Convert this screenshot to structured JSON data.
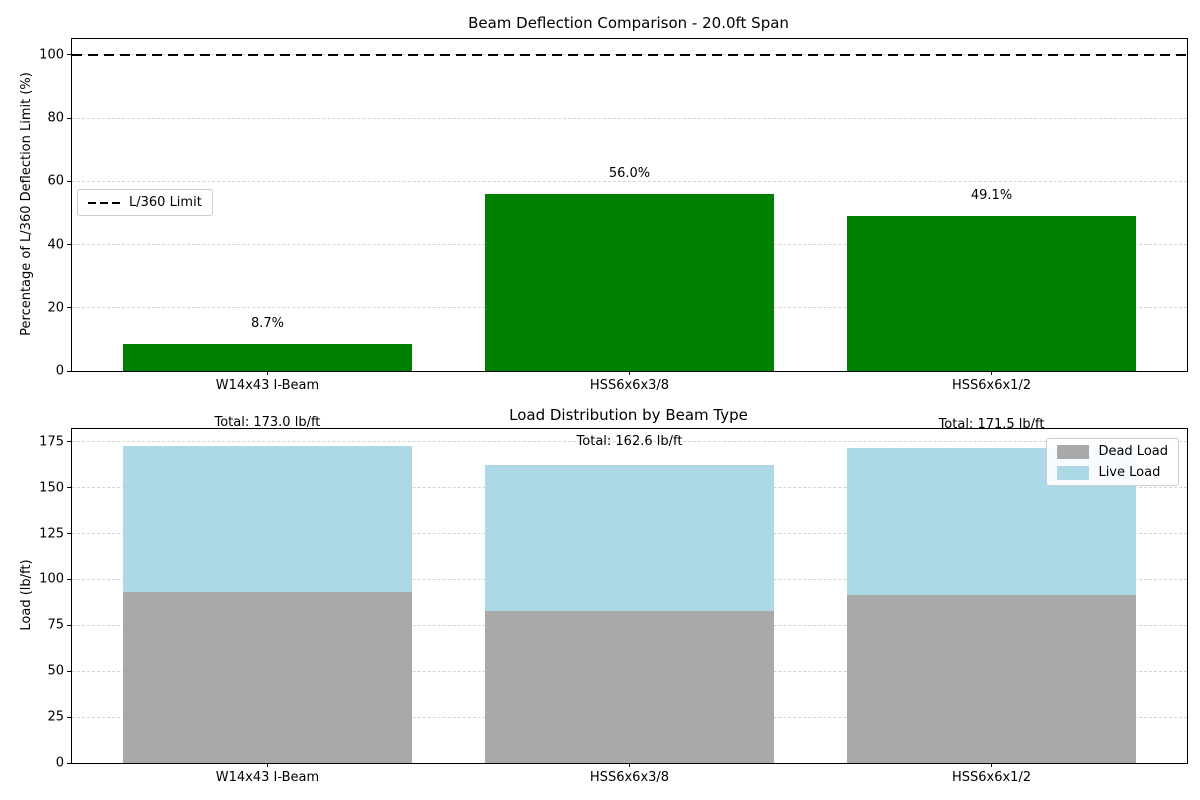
{
  "figure": {
    "background": "#ffffff",
    "grid_color": "#d4d4d4",
    "spine_color": "#000000"
  },
  "chart_data": [
    {
      "type": "bar",
      "title": "Beam Deflection Comparison - 20.0ft Span",
      "ylabel": "Percentage of L/360 Deflection Limit (%)",
      "xlabel": "",
      "categories": [
        "W14x43 I-Beam",
        "HSS6x6x3/8",
        "HSS6x6x1/2"
      ],
      "values": [
        8.7,
        56.0,
        49.1
      ],
      "bar_labels": [
        "8.7%",
        "56.0%",
        "49.1%"
      ],
      "bar_color": "#008000",
      "ylim": [
        0,
        105
      ],
      "yticks": [
        0,
        20,
        40,
        60,
        80,
        100
      ],
      "grid": true,
      "ref_line": {
        "value": 100,
        "style": "dashed",
        "color": "#000000",
        "label": "L/360 Limit"
      },
      "legend": {
        "position": "center-left",
        "entries": [
          {
            "label": "L/360 Limit",
            "swatch": "dashed-line",
            "color": "#000000"
          }
        ]
      }
    },
    {
      "type": "stacked-bar",
      "title": "Load Distribution by Beam Type",
      "ylabel": "Load (lb/ft)",
      "xlabel": "",
      "categories": [
        "W14x43 I-Beam",
        "HSS6x6x3/8",
        "HSS6x6x1/2"
      ],
      "series": [
        {
          "name": "Dead Load",
          "color": "#a9a9a9",
          "values": [
            93.0,
            82.6,
            91.5
          ]
        },
        {
          "name": "Live Load",
          "color": "#add8e6",
          "values": [
            80.0,
            80.0,
            80.0
          ]
        }
      ],
      "totals": [
        173.0,
        162.6,
        171.5
      ],
      "total_labels": [
        "Total: 173.0 lb/ft",
        "Total: 162.6 lb/ft",
        "Total: 171.5 lb/ft"
      ],
      "ylim": [
        0,
        182
      ],
      "yticks": [
        0,
        25,
        50,
        75,
        100,
        125,
        150,
        175
      ],
      "grid": true,
      "legend": {
        "position": "upper-right",
        "entries": [
          {
            "label": "Dead Load",
            "swatch": "patch",
            "color": "#a9a9a9"
          },
          {
            "label": "Live Load",
            "swatch": "patch",
            "color": "#add8e6"
          }
        ]
      }
    }
  ]
}
